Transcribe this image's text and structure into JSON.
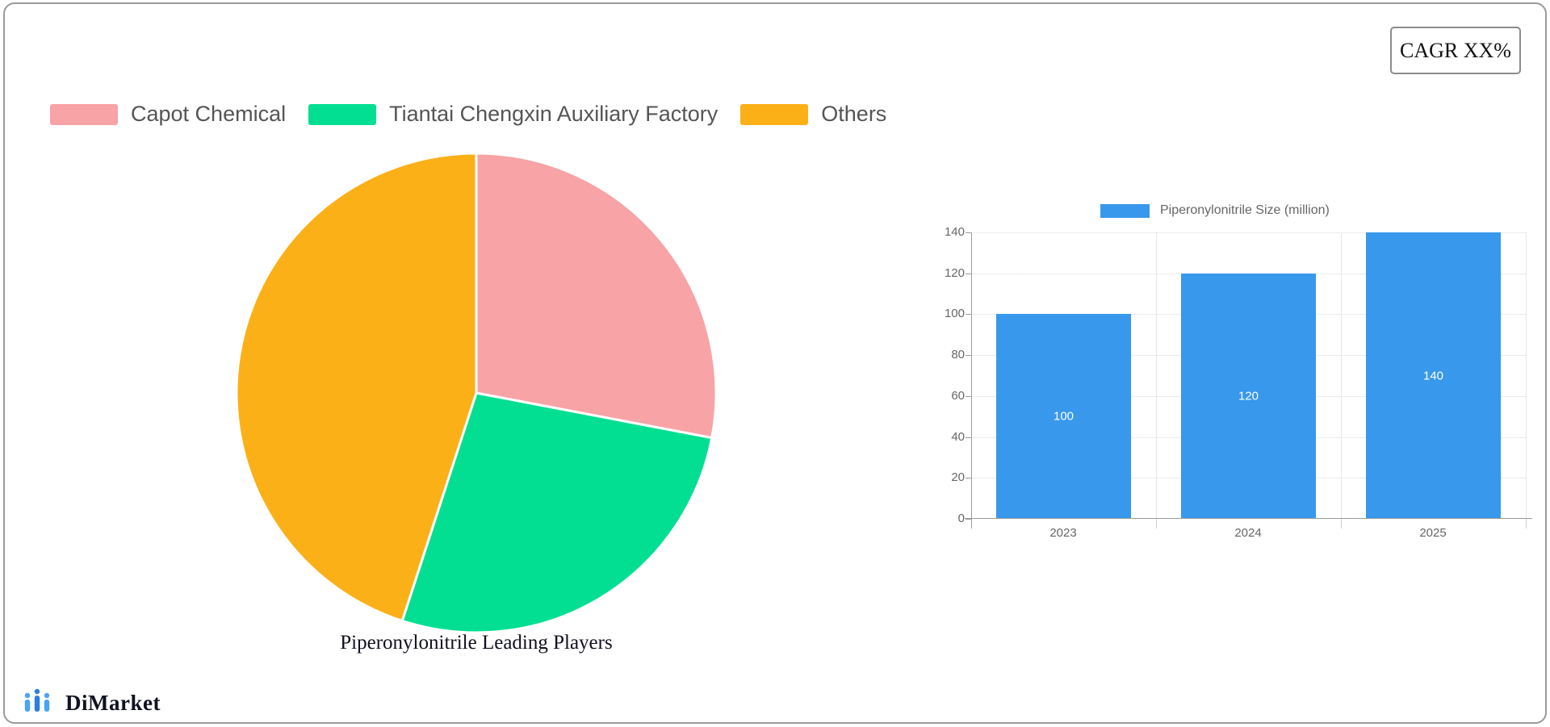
{
  "card": {
    "cagr_label": "CAGR XX%"
  },
  "brand": {
    "name": "DiMarket",
    "logo_icon": "bar-chart-icon",
    "accent_light": "#4aa3f5",
    "accent_dark": "#2b7de0"
  },
  "chart_data": [
    {
      "type": "pie",
      "title": "Piperonylonitrile Leading Players",
      "labels": [
        "Capot Chemical",
        "Tiantai Chengxin Auxiliary Factory",
        "Others"
      ],
      "values": [
        28,
        27,
        45
      ],
      "unit": "percent",
      "colors": [
        "#F8A3A6",
        "#03DF92",
        "#FCB017"
      ],
      "start_angle_deg": 0,
      "direction": "clockwise",
      "legend_position": "top-left",
      "slice_border_color": "#ffffff"
    },
    {
      "type": "bar",
      "categories": [
        "2023",
        "2024",
        "2025"
      ],
      "series": [
        {
          "name": "Piperonylonitrile Size (million)",
          "values": [
            100,
            120,
            140
          ]
        }
      ],
      "bar_color": "#3898ec",
      "value_label_color": "#ffffff",
      "ylim": [
        0,
        140
      ],
      "yticks": [
        0,
        20,
        40,
        60,
        80,
        100,
        120,
        140
      ],
      "grid": true,
      "legend_position": "top"
    }
  ]
}
